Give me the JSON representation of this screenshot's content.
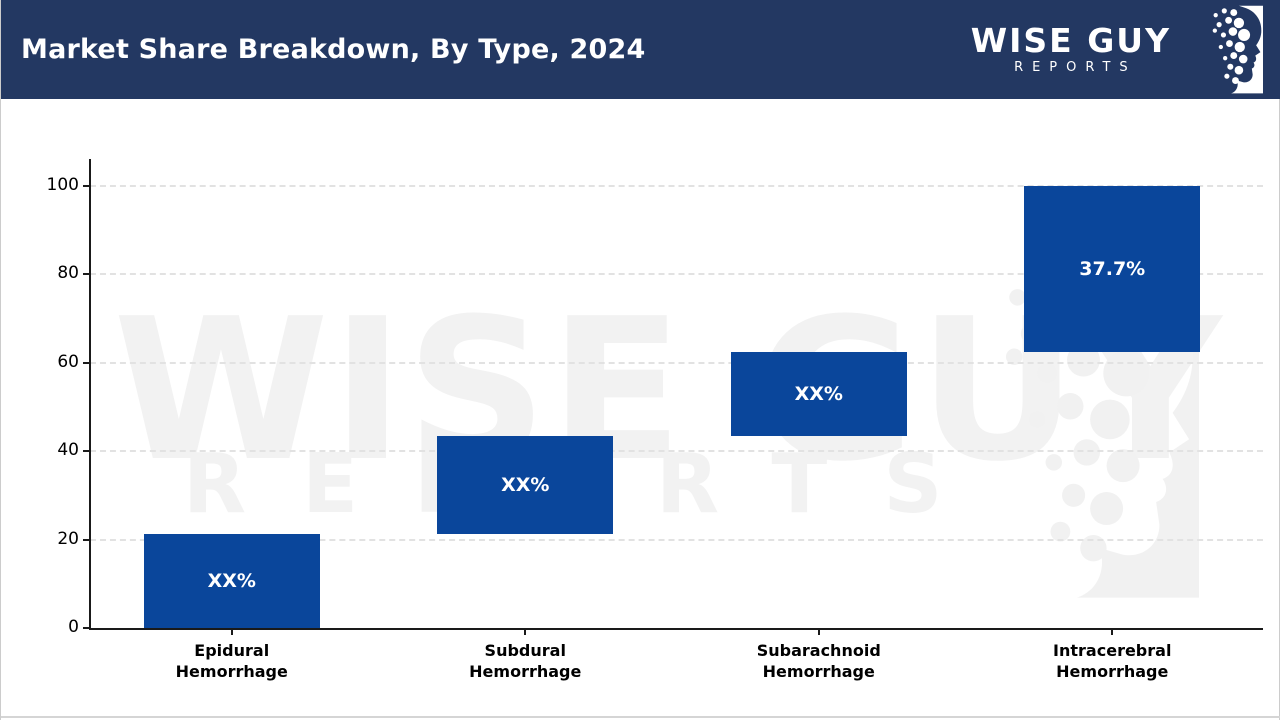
{
  "header": {
    "title": "Market Share Breakdown, By Type, 2024",
    "logo_line1": "WISE GUY",
    "logo_line2": "REPORTS",
    "bg_color": "#233862"
  },
  "watermark": {
    "line1": "WISE GUY",
    "line2": "REPORTS"
  },
  "chart_data": {
    "type": "bar",
    "subtype": "waterfall",
    "title": "Market Share Breakdown, By Type, 2024",
    "categories": [
      "Epidural Hemorrhage",
      "Subdural Hemorrhage",
      "Subarachnoid Hemorrhage",
      "Intracerebral Hemorrhage"
    ],
    "segments": [
      {
        "category": "Epidural Hemorrhage",
        "start": 0,
        "end": 21.2,
        "label": "XX%"
      },
      {
        "category": "Subdural Hemorrhage",
        "start": 21.2,
        "end": 43.4,
        "label": "XX%"
      },
      {
        "category": "Subarachnoid Hemorrhage",
        "start": 43.4,
        "end": 62.3,
        "label": "XX%"
      },
      {
        "category": "Intracerebral Hemorrhage",
        "start": 62.3,
        "end": 100,
        "label": "37.7%"
      }
    ],
    "y_ticks": [
      0,
      20,
      40,
      60,
      80,
      100
    ],
    "ylim": [
      0,
      106
    ],
    "xlabel": "",
    "ylabel": "",
    "grid": "horizontal-dashed",
    "legend": "none",
    "bar_color": "#0a469b",
    "bar_label_color": "#ffffff",
    "gridline_color": "#e2e2e2",
    "axis_color": "#1a1a1a"
  }
}
